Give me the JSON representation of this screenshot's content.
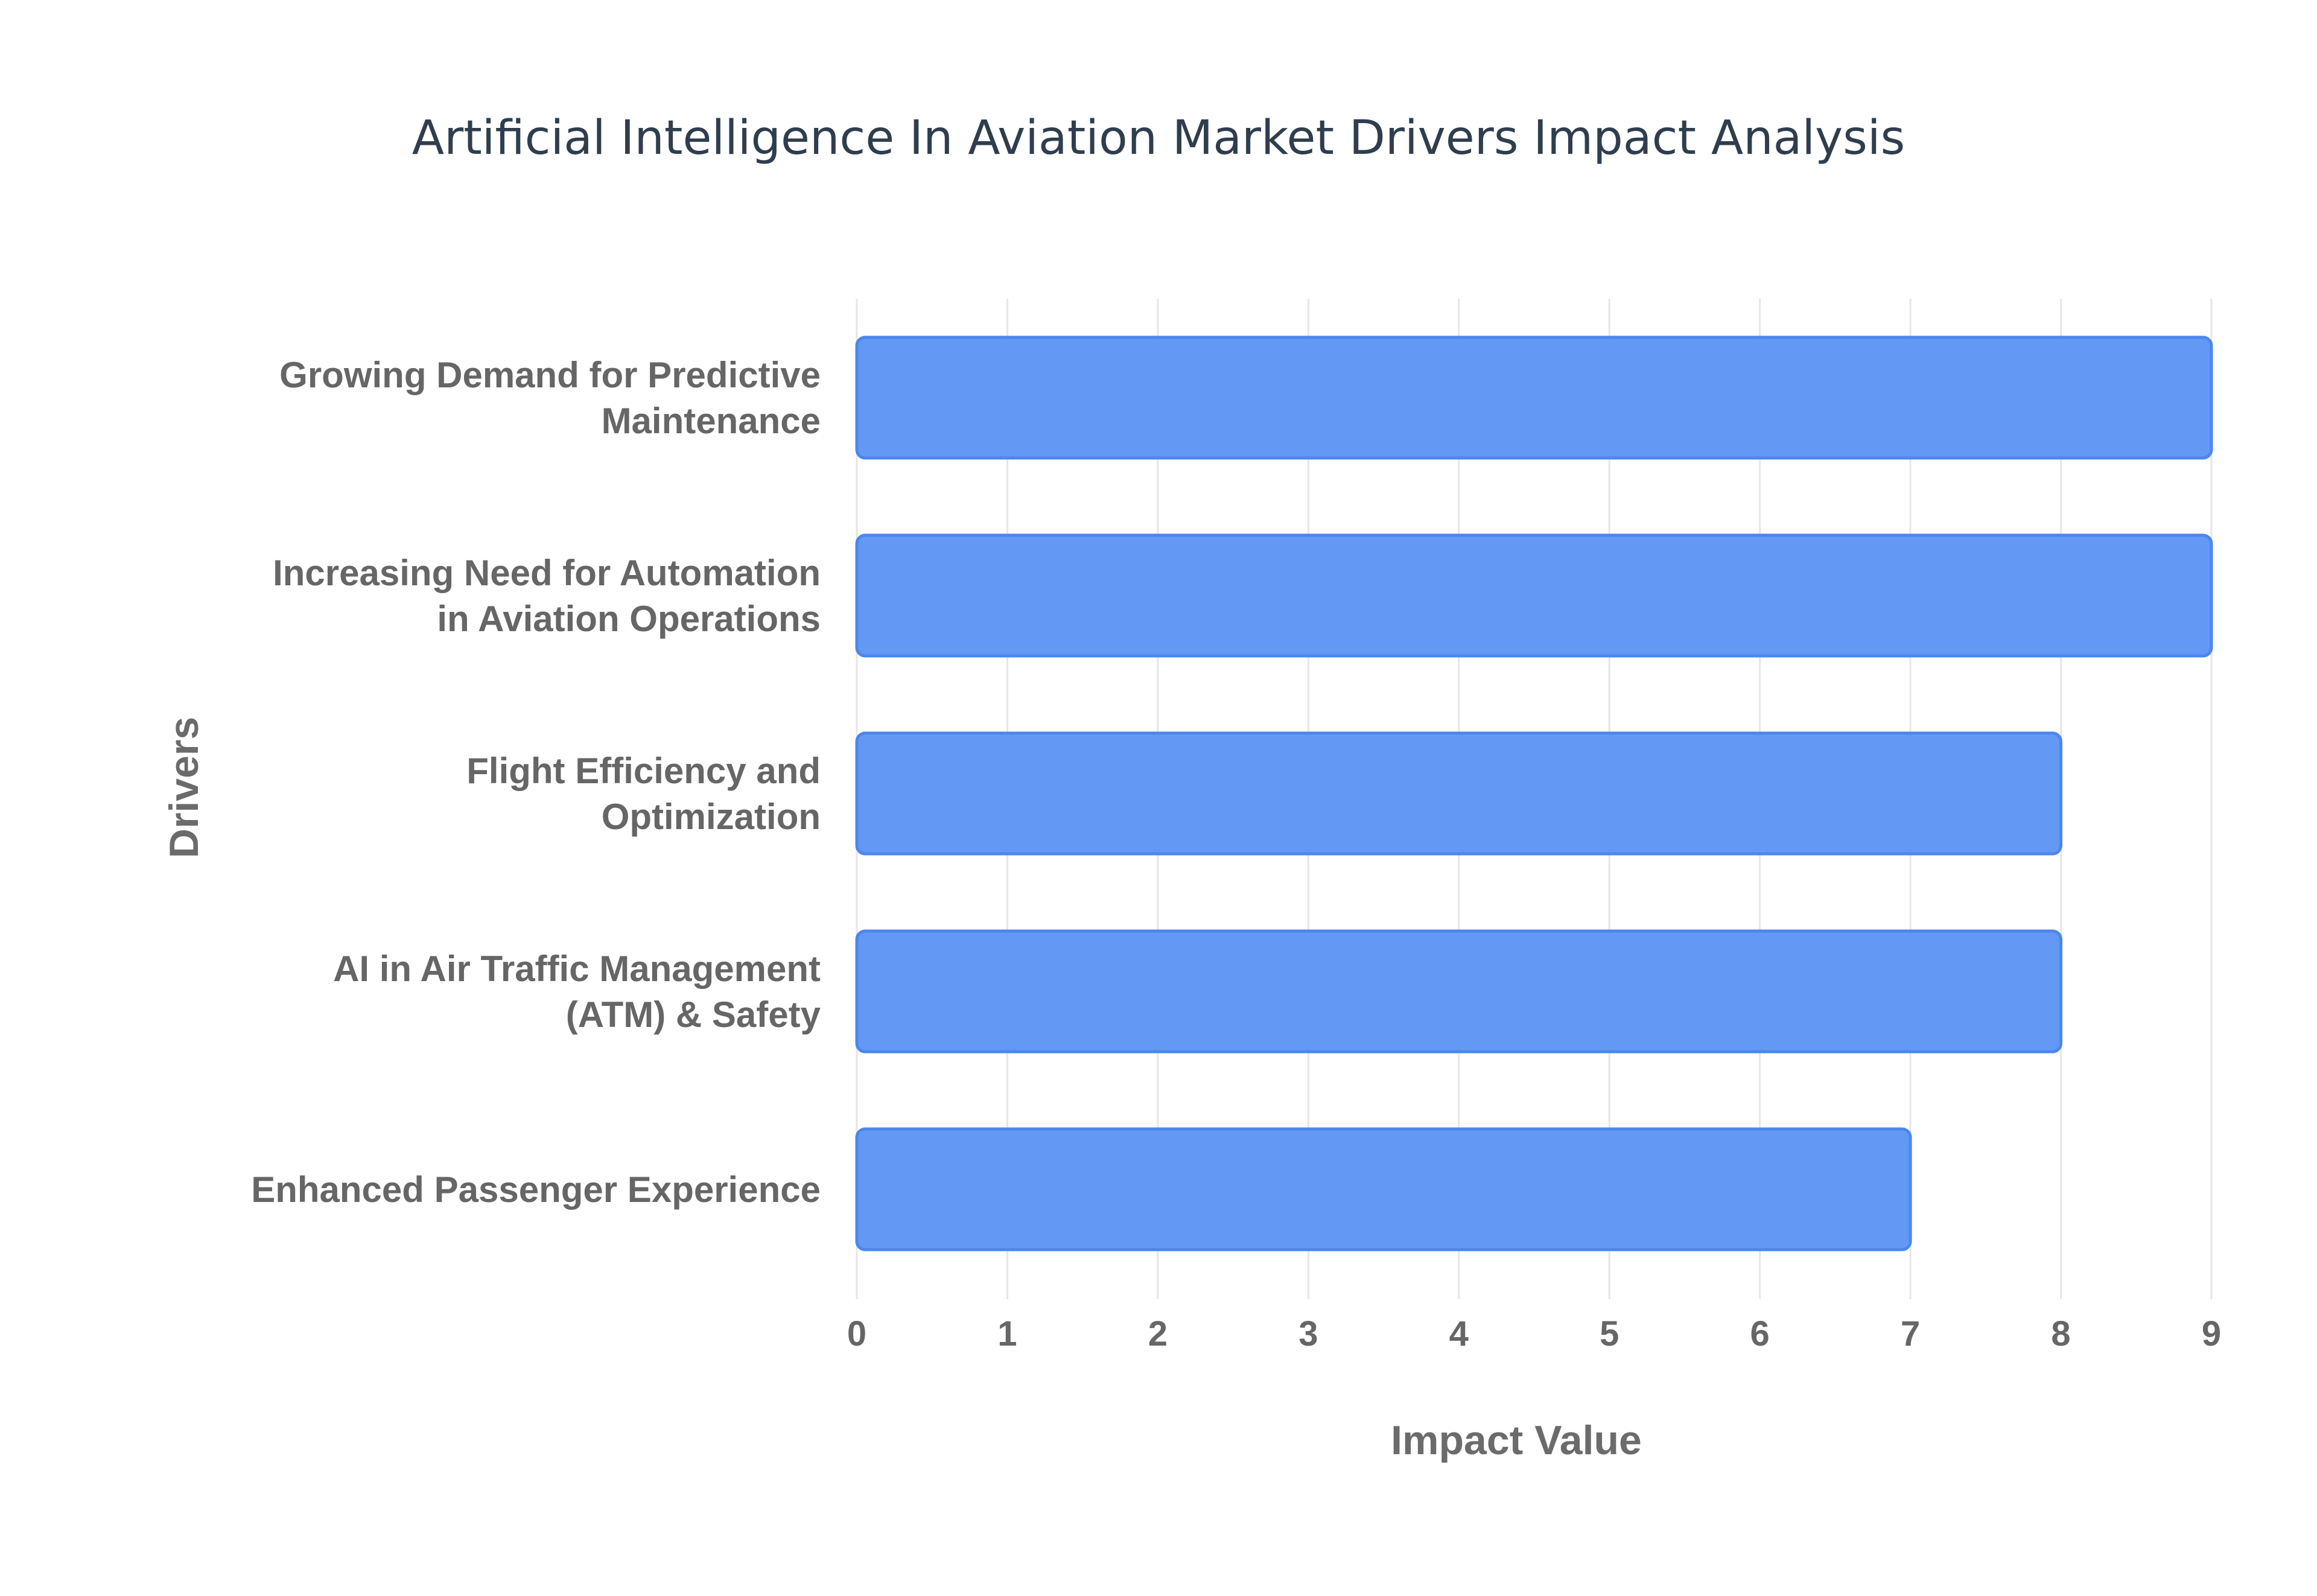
{
  "colors": {
    "bar_fill": "#6399f5",
    "bar_stroke": "#4c86ee",
    "title": "#2f3e4e",
    "text": "#666666"
  },
  "chart_data": {
    "type": "bar",
    "orientation": "horizontal",
    "title": "Artificial Intelligence In Aviation Market Drivers Impact Analysis",
    "xlabel": "Impact Value",
    "ylabel": "Drivers",
    "xlim": [
      0,
      9
    ],
    "xticks": [
      "0",
      "1",
      "2",
      "3",
      "4",
      "5",
      "6",
      "7",
      "8",
      "9"
    ],
    "grid": true,
    "categories": [
      [
        "Growing Demand for Predictive",
        "Maintenance"
      ],
      [
        "Increasing Need for Automation",
        "in Aviation Operations"
      ],
      [
        "Flight Efficiency and",
        "Optimization"
      ],
      [
        "AI in Air Traffic Management",
        "(ATM) & Safety"
      ],
      [
        "Enhanced Passenger Experience"
      ]
    ],
    "values": [
      9,
      9,
      8,
      8,
      7
    ]
  }
}
